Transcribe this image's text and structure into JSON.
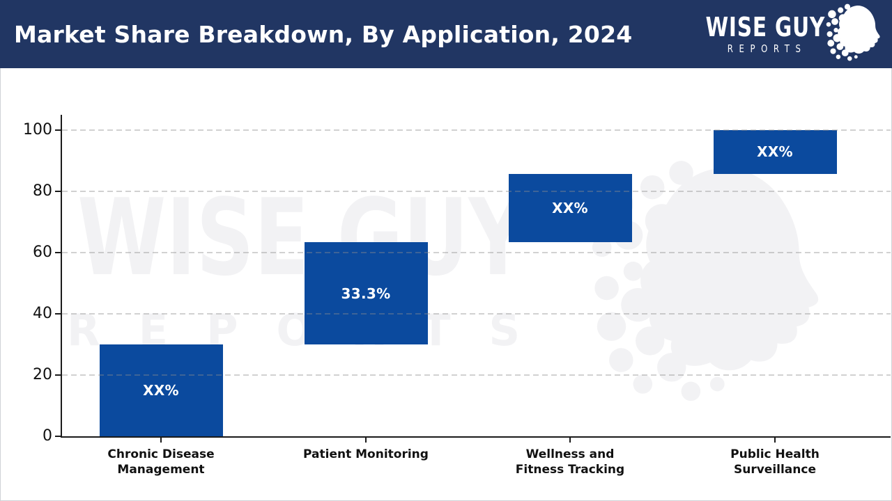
{
  "header": {
    "title": "Market Share Breakdown, By Application, 2024",
    "logo": {
      "line1": "WISE GUY",
      "line2": "REPORTS"
    }
  },
  "watermark": {
    "line1": "WISE GUY",
    "line2": "REPORTS"
  },
  "chart_data": {
    "type": "bar",
    "subtype": "floating-waterfall",
    "title": "Market Share Breakdown, By Application, 2024",
    "categories": [
      "Chronic Disease Management",
      "Patient Monitoring",
      "Wellness and Fitness Tracking",
      "Public Health Surveillance"
    ],
    "category_lines": [
      [
        "Chronic Disease",
        "Management"
      ],
      [
        "Patient Monitoring"
      ],
      [
        "Wellness and",
        "Fitness Tracking"
      ],
      [
        "Public Health",
        "Surveillance"
      ]
    ],
    "segments": [
      {
        "category": "Chronic Disease Management",
        "start": 0,
        "end": 30,
        "label": "XX%"
      },
      {
        "category": "Patient Monitoring",
        "start": 30,
        "end": 63.3,
        "label": "33.3%"
      },
      {
        "category": "Wellness and Fitness Tracking",
        "start": 63.3,
        "end": 85.7,
        "label": "XX%"
      },
      {
        "category": "Public Health Surveillance",
        "start": 85.7,
        "end": 100,
        "label": "XX%"
      }
    ],
    "y_ticks": [
      0,
      20,
      40,
      60,
      80,
      100
    ],
    "ylim": [
      0,
      105
    ],
    "xlabel": "",
    "ylabel": "",
    "grid": "horizontal-dashed",
    "legend": "none",
    "colors": {
      "bar": "#0b4a9e",
      "header_bg": "#213663",
      "watermark": "#f2f2f4",
      "gridline": "rgba(140,140,140,0.4)",
      "axis": "#1a1a1a",
      "bar_label": "#ffffff"
    }
  }
}
